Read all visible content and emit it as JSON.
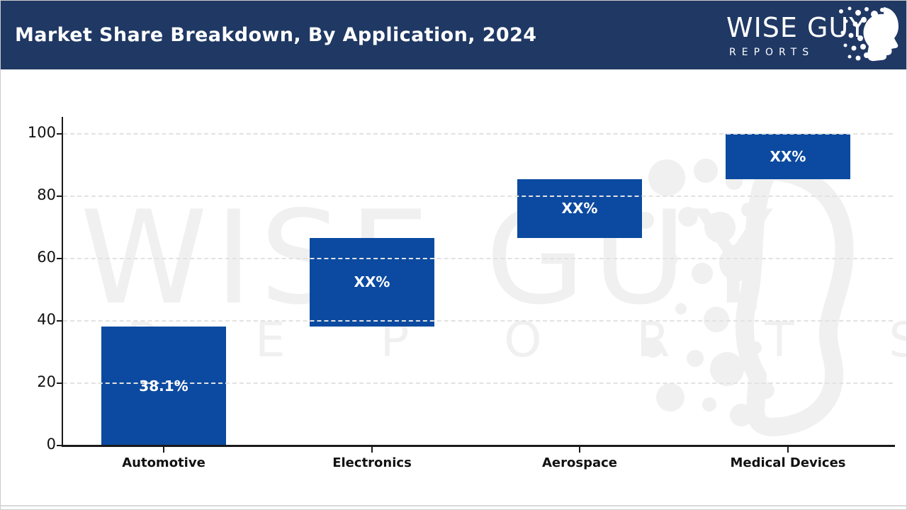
{
  "header": {
    "title": "Market Share Breakdown, By Application, 2024",
    "bg_color": "#1f3864",
    "logo": {
      "line1": "WISE GUY",
      "line2": "R E P O R T S"
    }
  },
  "watermark": {
    "line1": "WISE GUY",
    "line2": "R E P O R T S"
  },
  "chart_data": {
    "type": "bar",
    "subtype": "waterfall",
    "title": "Market Share Breakdown, By Application, 2024",
    "categories": [
      "Automotive",
      "Electronics",
      "Aerospace",
      "Medical Devices"
    ],
    "segments": [
      {
        "category": "Automotive",
        "start": 0,
        "end": 38.1,
        "value": 38.1,
        "label": "38.1%"
      },
      {
        "category": "Electronics",
        "start": 38.1,
        "end": 66.7,
        "value": 28.6,
        "label": "XX%"
      },
      {
        "category": "Aerospace",
        "start": 66.7,
        "end": 85.5,
        "value": 18.8,
        "label": "XX%"
      },
      {
        "category": "Medical Devices",
        "start": 85.5,
        "end": 100,
        "value": 14.5,
        "label": "XX%"
      }
    ],
    "xlabel": "",
    "ylabel": "",
    "ylim": [
      0,
      100
    ],
    "yticks": [
      0,
      20,
      40,
      60,
      80,
      100
    ],
    "grid": "horizontal-dashed",
    "legend": "none",
    "bar_color": "#0b4aa0",
    "bar_label_color": "#ffffff",
    "axis_color": "#1a1a1a",
    "grid_color": "#e2e2e2"
  }
}
